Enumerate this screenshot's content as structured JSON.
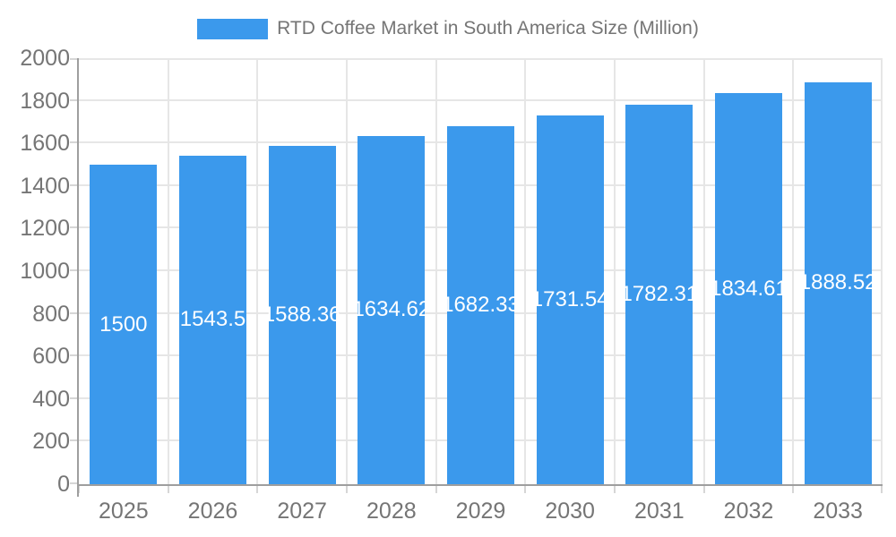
{
  "chart_data": {
    "type": "bar",
    "title": "RTD Coffee Market in South America Size (Million)",
    "categories": [
      "2025",
      "2026",
      "2027",
      "2028",
      "2029",
      "2030",
      "2031",
      "2032",
      "2033"
    ],
    "values": [
      1500,
      1543.5,
      1588.36,
      1634.62,
      1682.33,
      1731.54,
      1782.31,
      1834.61,
      1888.52
    ],
    "value_labels": [
      "1500",
      "1543.5",
      "1588.36",
      "1634.62",
      "1682.33",
      "1731.54",
      "1782.31",
      "1834.61",
      "1888.52"
    ],
    "xlabel": "",
    "ylabel": "",
    "ylim": [
      0,
      2000
    ],
    "ytick_step": 200,
    "ytick_labels": [
      "0",
      "200",
      "400",
      "600",
      "800",
      "1000",
      "1200",
      "1400",
      "1600",
      "1800",
      "2000"
    ],
    "grid": "on",
    "legend_position": "top",
    "colors": {
      "bar": "#3B99EC",
      "bar_label": "#FFFFFF",
      "axis_text": "#757575",
      "grid_line": "#E6E6E6",
      "axis_line": "#9E9E9E",
      "tick_mark": "#D6D6D6",
      "background": "#FFFFFF"
    }
  }
}
